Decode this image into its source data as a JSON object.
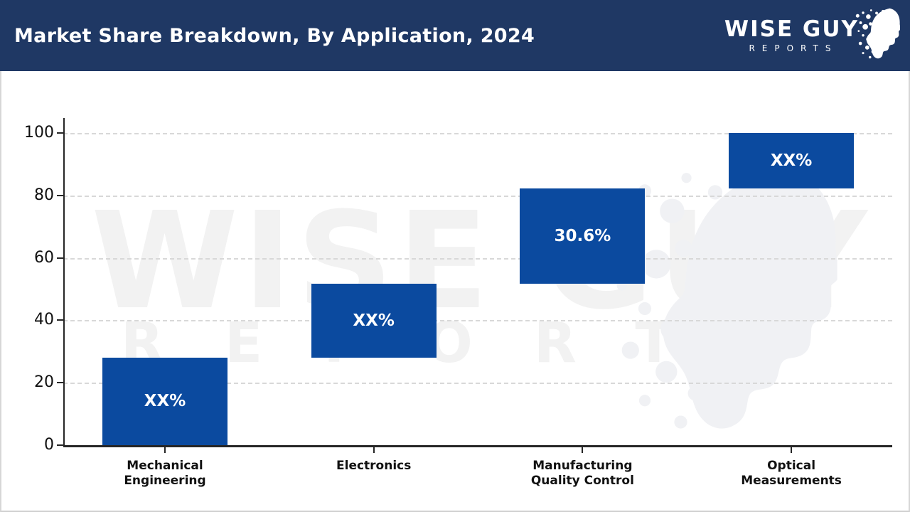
{
  "header": {
    "title": "Market Share Breakdown, By Application, 2024",
    "bg_color": "#1f3864",
    "logo": {
      "line1": "WISE GUY",
      "line2": "REPORTS"
    }
  },
  "watermark": {
    "line1": "WISE GUY",
    "line2": "REPORTS"
  },
  "chart_data": {
    "type": "bar",
    "subtype": "waterfall",
    "title": "Market Share Breakdown, By Application, 2024",
    "categories": [
      "Mechanical Engineering",
      "Electronics",
      "Manufacturing Quality Control",
      "Optical Measurements"
    ],
    "category_lines": [
      [
        "Mechanical",
        "Engineering"
      ],
      [
        "Electronics"
      ],
      [
        "Manufacturing",
        "Quality Control"
      ],
      [
        "Optical",
        "Measurements"
      ]
    ],
    "segments": [
      {
        "category": "Mechanical Engineering",
        "start": 0,
        "end": 28.1,
        "label": "XX%"
      },
      {
        "category": "Electronics",
        "start": 28.1,
        "end": 51.7,
        "label": "XX%"
      },
      {
        "category": "Manufacturing Quality Control",
        "start": 51.7,
        "end": 82.3,
        "value": 30.6,
        "label": "30.6%"
      },
      {
        "category": "Optical Measurements",
        "start": 82.3,
        "end": 100,
        "label": "XX%"
      }
    ],
    "ylim": [
      0,
      100
    ],
    "yticks": [
      0,
      20,
      40,
      60,
      80,
      100
    ],
    "grid": "horizontal dashed",
    "legend": "none",
    "bar_color": "#0b4a9f",
    "label_color": "#ffffff",
    "axis_color": "#262626",
    "grid_color": "#d8d8d8"
  }
}
